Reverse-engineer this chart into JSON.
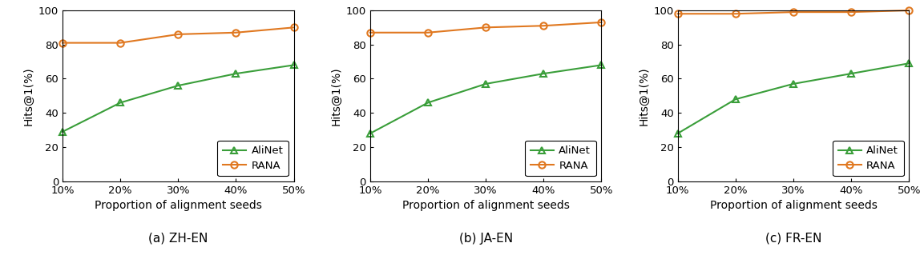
{
  "x": [
    10,
    20,
    30,
    40,
    50
  ],
  "x_labels": [
    "10%",
    "20%",
    "30%",
    "40%",
    "50%"
  ],
  "subplots": [
    {
      "title": "(a) ZH-EN",
      "alinet": [
        29,
        46,
        56,
        63,
        68
      ],
      "rana": [
        81,
        81,
        86,
        87,
        90
      ]
    },
    {
      "title": "(b) JA-EN",
      "alinet": [
        28,
        46,
        57,
        63,
        68
      ],
      "rana": [
        87,
        87,
        90,
        91,
        93
      ]
    },
    {
      "title": "(c) FR-EN",
      "alinet": [
        28,
        48,
        57,
        63,
        69
      ],
      "rana": [
        98,
        98,
        99,
        99,
        100
      ]
    }
  ],
  "alinet_color": "#3a9e3a",
  "rana_color": "#e07820",
  "ylabel": "Hits@1(%)",
  "xlabel": "Proportion of alignment seeds",
  "ylim": [
    0,
    100
  ],
  "yticks": [
    0,
    20,
    40,
    60,
    80,
    100
  ],
  "legend_labels": [
    "AliNet",
    "RANA"
  ],
  "linewidth": 1.5,
  "markersize": 6,
  "title_fontsize": 11,
  "label_fontsize": 10,
  "tick_fontsize": 9.5,
  "legend_fontsize": 9.5
}
